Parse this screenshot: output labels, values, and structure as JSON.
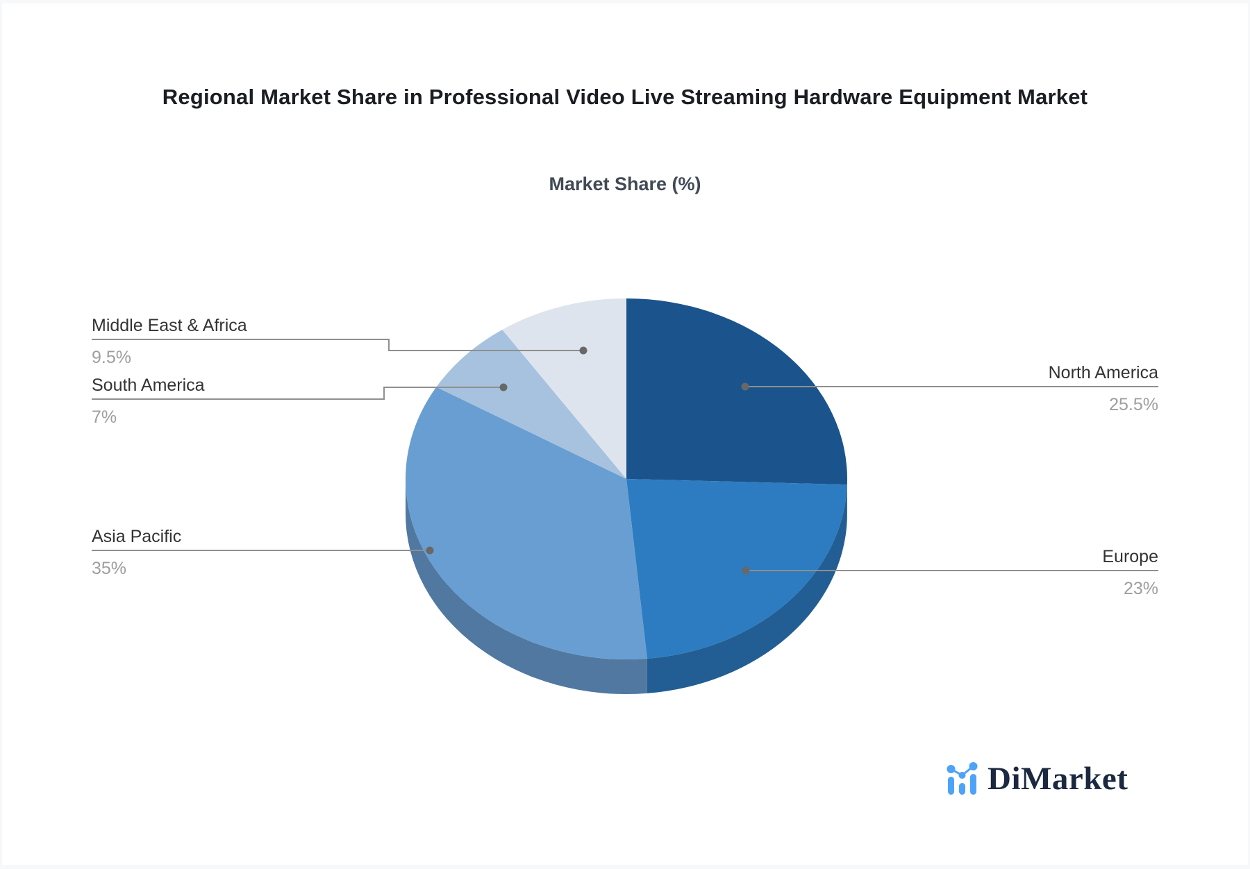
{
  "page": {
    "title": "Regional Market Share in Professional Video Live Streaming Hardware Equipment Market",
    "subtitle": "Market Share (%)"
  },
  "chart_data": {
    "type": "pie",
    "title": "Regional Market Share in Professional Video Live Streaming Hardware Equipment Market",
    "subtitle": "Market Share (%)",
    "unit": "%",
    "style": "pie-3d",
    "start_angle_deg": 0,
    "direction": "clockwise",
    "legend_position": "none",
    "label_style": "callout-lines",
    "series": [
      {
        "label": "North America",
        "value": 25.5,
        "display": "25.5%",
        "color": "#1b548c"
      },
      {
        "label": "Europe",
        "value": 23,
        "display": "23%",
        "color": "#2d7cc1"
      },
      {
        "label": "Asia Pacific",
        "value": 35,
        "display": "35%",
        "color": "#699ed2"
      },
      {
        "label": "South America",
        "value": 7,
        "display": "7%",
        "color": "#a7c2de"
      },
      {
        "label": "Middle East & Africa",
        "value": 9.5,
        "display": "9.5%",
        "color": "#dee4ee"
      }
    ],
    "label_text_color": "#333333",
    "value_text_color": "#9e9e9e",
    "callout_line_color": "#8f8f8f",
    "callout_dot_color": "#686868"
  },
  "branding": {
    "logo_text": "DiMarket",
    "logo_text_color": "#1b2940",
    "logo_icon_color": "#4da3f7",
    "logo_icon": "bar-chart-with-trend-dots"
  }
}
